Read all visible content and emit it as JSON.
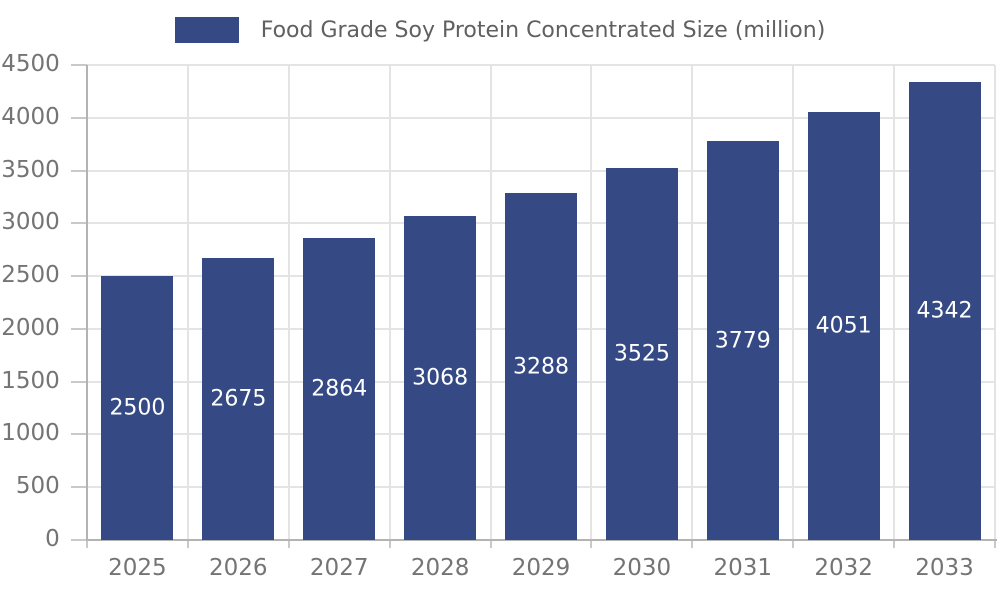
{
  "legend": {
    "label": "Food Grade Soy Protein Concentrated Size (million)"
  },
  "colors": {
    "accent": "#354a85",
    "grid": "#e4e4e4",
    "axis_line": "#b3b3b3",
    "tick": "#c9c9c9",
    "axis_label_text": "#747474",
    "legend_text": "#606060",
    "bar_label_text": "#ffffff",
    "background": "#ffffff"
  },
  "chart_data": {
    "type": "bar",
    "title": "Food Grade Soy Protein Concentrated Size (million)",
    "categories": [
      "2025",
      "2026",
      "2027",
      "2028",
      "2029",
      "2030",
      "2031",
      "2032",
      "2033"
    ],
    "series": [
      {
        "name": "Food Grade Soy Protein Concentrated Size (million)",
        "values": [
          2500,
          2675,
          2864,
          3068,
          3288,
          3525,
          3779,
          4051,
          4342
        ]
      }
    ],
    "values": [
      2500,
      2675,
      2864,
      3068,
      3288,
      3525,
      3779,
      4051,
      4342
    ],
    "bar_value_labels": [
      "2500",
      "2675",
      "2864",
      "3068",
      "3288",
      "3525",
      "3779",
      "4051",
      "4342"
    ],
    "xlabel": "",
    "ylabel": "",
    "ylim": [
      0,
      4500
    ],
    "yticks": [
      0,
      500,
      1000,
      1500,
      2000,
      2500,
      3000,
      3500,
      4000,
      4500
    ],
    "grid": true,
    "legend_position": "top"
  }
}
